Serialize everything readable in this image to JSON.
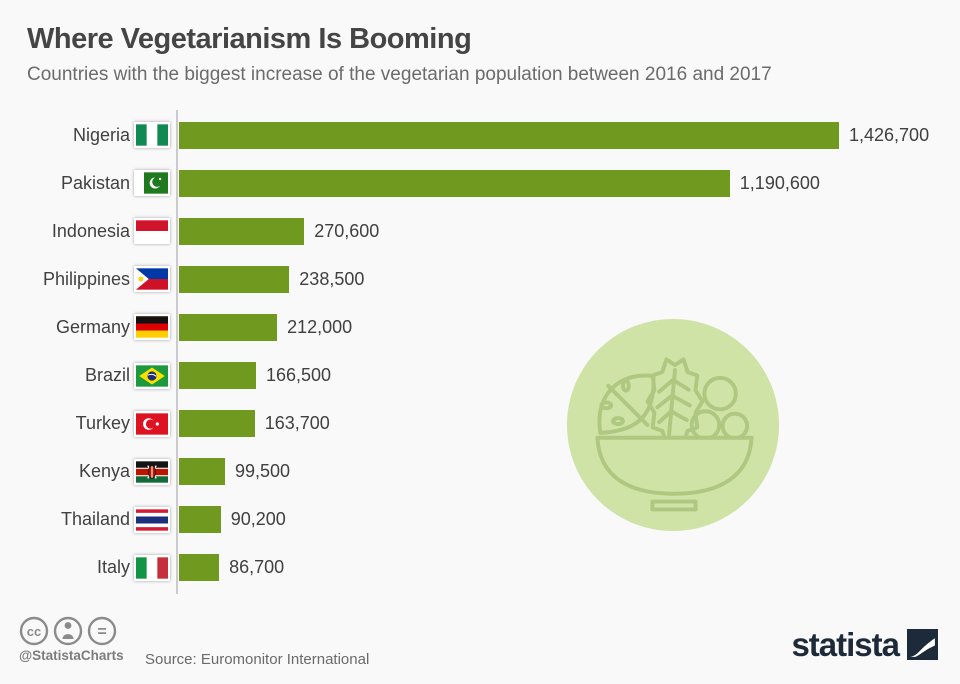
{
  "header": {
    "title": "Where Vegetarianism Is Booming",
    "subtitle": "Countries with the biggest increase of the vegetarian population between 2016 and 2017"
  },
  "chart_data": {
    "type": "bar",
    "orientation": "horizontal",
    "title": "Where Vegetarianism Is Booming",
    "subtitle": "Countries with the biggest increase of the vegetarian population between 2016 and 2017",
    "categories": [
      "Nigeria",
      "Pakistan",
      "Indonesia",
      "Philippines",
      "Germany",
      "Brazil",
      "Turkey",
      "Kenya",
      "Thailand",
      "Italy"
    ],
    "values": [
      1426700,
      1190600,
      270600,
      238500,
      212000,
      166500,
      163700,
      99500,
      90200,
      86700
    ],
    "value_labels": [
      "1,426,700",
      "1,190,600",
      "270,600",
      "238,500",
      "212,000",
      "166,500",
      "163,700",
      "99,500",
      "90,200",
      "86,700"
    ],
    "flags": [
      "nigeria-flag",
      "pakistan-flag",
      "indonesia-flag",
      "philippines-flag",
      "germany-flag",
      "brazil-flag",
      "turkey-flag",
      "kenya-flag",
      "thailand-flag",
      "italy-flag"
    ],
    "xlim": [
      0,
      1426700
    ],
    "grid": false,
    "legend": false,
    "bar_color": "#6f9a1f",
    "axis_color": "#cbcbcb"
  },
  "decoration": {
    "icon": "salad-bowl-icon",
    "circle_fill": "#cfe3a6",
    "line_color": "#aec781"
  },
  "footer": {
    "license_icons": [
      "cc-icon",
      "attribution-icon",
      "no-derivatives-icon"
    ],
    "handle": "@StatistaCharts",
    "source": "Source: Euromonitor International",
    "brand": "statista",
    "brand_color": "#1d2a39"
  },
  "colors": {
    "background": "#f9f9f9",
    "title_text": "#454545",
    "subtitle_text": "#6b6b6b",
    "label_text": "#414141"
  }
}
